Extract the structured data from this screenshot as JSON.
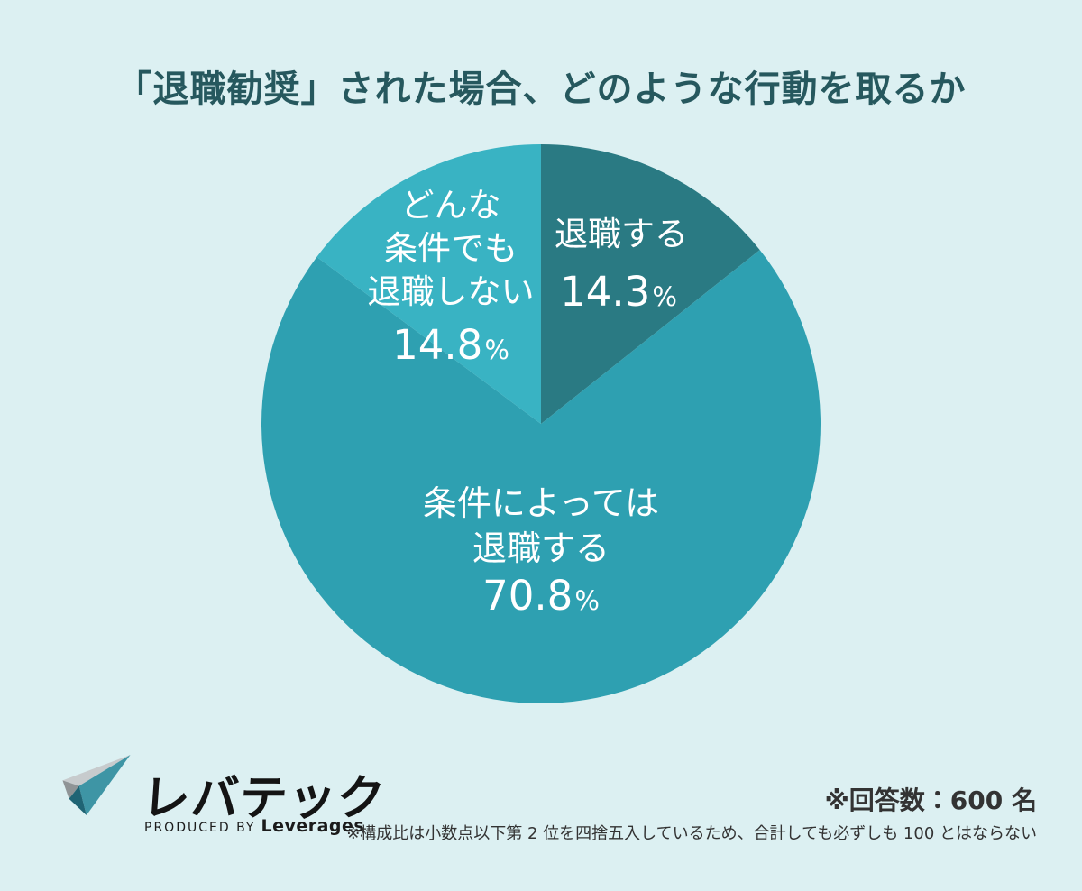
{
  "title": "「退職勧奨」された場合、どのような行動を取るか",
  "percent_symbol": "%",
  "chart_data": {
    "type": "pie",
    "title": "「退職勧奨」された場合、どのような行動を取るか",
    "unit": "%",
    "start": "top",
    "direction": "clockwise",
    "legend_position": "none",
    "labels_position": "inside",
    "slices": [
      {
        "label": "退職する",
        "lines": [
          "退職する"
        ],
        "value": 14.3,
        "value_display": "14.3",
        "color": "#2a7a83"
      },
      {
        "label": "条件によっては退職する",
        "lines": [
          "条件によっては",
          "退職する"
        ],
        "value": 70.8,
        "value_display": "70.8",
        "color": "#2ea0b1"
      },
      {
        "label": "どんな条件でも退職しない",
        "lines": [
          "どんな",
          "条件でも",
          "退職しない"
        ],
        "value": 14.8,
        "value_display": "14.8",
        "color": "#39b3c3"
      }
    ]
  },
  "footer": {
    "logo": {
      "brand": "レバテック",
      "produced_by": "PRODUCED BY",
      "company": "Leverages"
    },
    "respondents_note": "※回答数：600 名",
    "rounding_note": "※構成比は小数点以下第 2 位を四捨五入しているため、合計しても必ずしも 100 とはならない"
  },
  "colors": {
    "background": "#dcf0f2",
    "title_text": "#26585e",
    "slice_label_text": "#ffffff",
    "footer_text": "#333333",
    "logo_teal": "#3e95a5",
    "logo_dark_teal": "#1f6474",
    "logo_light_gray": "#c7cbcd",
    "logo_gray": "#8f9496"
  }
}
